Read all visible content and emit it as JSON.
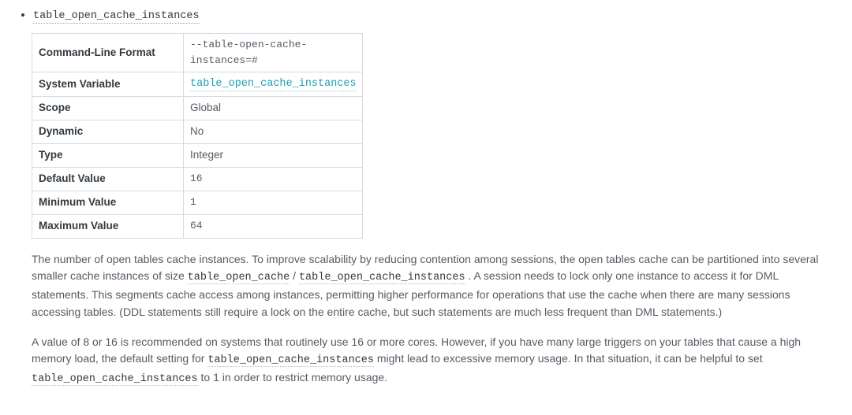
{
  "heading": {
    "var_name": "table_open_cache_instances"
  },
  "table": {
    "rows": [
      {
        "label": "Command-Line Format",
        "value": "--table-open-cache-instances=#",
        "mono": true,
        "link": false
      },
      {
        "label": "System Variable",
        "value": "table_open_cache_instances",
        "mono": true,
        "link": true
      },
      {
        "label": "Scope",
        "value": "Global",
        "mono": false,
        "link": false
      },
      {
        "label": "Dynamic",
        "value": "No",
        "mono": false,
        "link": false
      },
      {
        "label": "Type",
        "value": "Integer",
        "mono": false,
        "link": false
      },
      {
        "label": "Default Value",
        "value": "16",
        "mono": true,
        "link": false
      },
      {
        "label": "Minimum Value",
        "value": "1",
        "mono": true,
        "link": false
      },
      {
        "label": "Maximum Value",
        "value": "64",
        "mono": true,
        "link": false
      }
    ]
  },
  "para1": {
    "t1": "The number of open tables cache instances. To improve scalability by reducing contention among sessions, the open tables cache can be partitioned into several smaller cache instances of size ",
    "c1": "table_open_cache",
    "t2": " / ",
    "c2": "table_open_cache_instances",
    "t3": " . A session needs to lock only one instance to access it for DML statements. This segments cache access among instances, permitting higher performance for operations that use the cache when there are many sessions accessing tables. (DDL statements still require a lock on the entire cache, but such statements are much less frequent than DML statements.)"
  },
  "para2": {
    "t1": "A value of 8 or 16 is recommended on systems that routinely use 16 or more cores. However, if you have many large triggers on your tables that cause a high memory load, the default setting for ",
    "c1": "table_open_cache_instances",
    "t2": " might lead to excessive memory usage. In that situation, it can be helpful to set ",
    "c2": "table_open_cache_instances",
    "t3": " to 1 in order to restrict memory usage."
  }
}
